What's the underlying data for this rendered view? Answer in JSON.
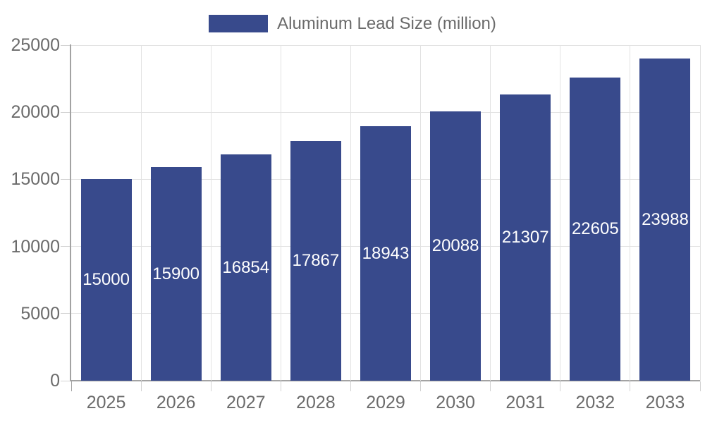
{
  "chart_data": {
    "type": "bar",
    "title": "",
    "legend": {
      "label": "Aluminum Lead Size (million)",
      "position": "top-center"
    },
    "categories": [
      "2025",
      "2026",
      "2027",
      "2028",
      "2029",
      "2030",
      "2031",
      "2032",
      "2033"
    ],
    "series": [
      {
        "name": "Aluminum Lead Size (million)",
        "values": [
          15000,
          15900,
          16854,
          17867,
          18943,
          20088,
          21307,
          22605,
          23988
        ]
      }
    ],
    "value_labels": [
      "15000",
      "15900",
      "16854",
      "17867",
      "18943",
      "20088",
      "21307",
      "22605",
      "23988"
    ],
    "value_label_position": "inside-center",
    "xlabel": "",
    "ylabel": "",
    "ylim": [
      0,
      25000
    ],
    "yticks": [
      0,
      5000,
      10000,
      15000,
      20000,
      25000
    ],
    "grid": true,
    "legend_position": "top",
    "colors": {
      "bar": "#384a8c",
      "gridline": "#e2e2e2",
      "axis_line": "#a3a3a3",
      "tick_mark": "#d2d2d2",
      "axis_text": "#6b6b6b",
      "value_text": "#ffffff",
      "background": "#ffffff"
    }
  }
}
